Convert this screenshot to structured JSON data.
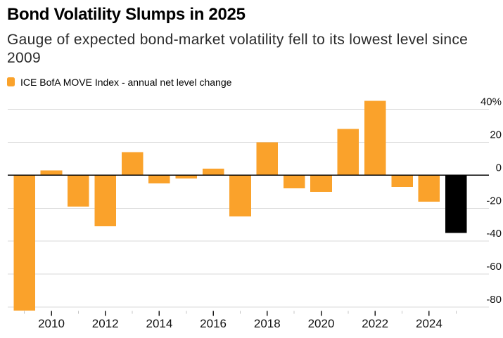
{
  "header": {
    "title": "Bond Volatility Slumps in 2025",
    "subtitle": "Gauge of expected bond-market volatility fell to its lowest level since 2009"
  },
  "legend": {
    "swatch_icon": "orange-square-swatch",
    "label": "ICE BofA MOVE Index - annual net level change",
    "color": "#FAA22B"
  },
  "chart_data": {
    "type": "bar",
    "title": "Bond Volatility Slumps in 2025",
    "subtitle": "Gauge of expected bond-market volatility fell to its lowest level since 2009",
    "legend_entries": [
      {
        "label": "ICE BofA MOVE Index - annual net level change",
        "color": "#FAA22B"
      }
    ],
    "legend_position": "top-left",
    "grid": true,
    "categories": [
      "2009",
      "2010",
      "2011",
      "2012",
      "2013",
      "2014",
      "2015",
      "2016",
      "2017",
      "2018",
      "2019",
      "2020",
      "2021",
      "2022",
      "2023",
      "2024",
      "2025"
    ],
    "values": [
      -82,
      3,
      -19,
      -31,
      14,
      -5,
      -2,
      4,
      -25,
      20,
      -8,
      -10,
      28,
      45,
      -7,
      -16,
      -35
    ],
    "bar_colors": [
      "#FAA22B",
      "#FAA22B",
      "#FAA22B",
      "#FAA22B",
      "#FAA22B",
      "#FAA22B",
      "#FAA22B",
      "#FAA22B",
      "#FAA22B",
      "#FAA22B",
      "#FAA22B",
      "#FAA22B",
      "#FAA22B",
      "#FAA22B",
      "#FAA22B",
      "#FAA22B",
      "#000000"
    ],
    "highlight": {
      "category": "2025",
      "color": "#000000"
    },
    "unit": "%",
    "ylim": [
      -82,
      48
    ],
    "yticks": [
      40,
      20,
      0,
      -20,
      -40,
      -60,
      -80
    ],
    "ytick_labels": [
      "40%",
      "20",
      "0",
      "-20",
      "-40",
      "-60",
      "-80"
    ],
    "xtick_labeled": [
      "2010",
      "2012",
      "2014",
      "2016",
      "2018",
      "2020",
      "2022",
      "2024"
    ],
    "colors": {
      "bar": "#FAA22B",
      "highlight_bar": "#000000",
      "gridline": "#d9d9d9",
      "zero_line": "#000000",
      "tick_major": "#1a1a1a",
      "tick_minor": "#c4c4c4",
      "axis_text": "#111111"
    }
  }
}
